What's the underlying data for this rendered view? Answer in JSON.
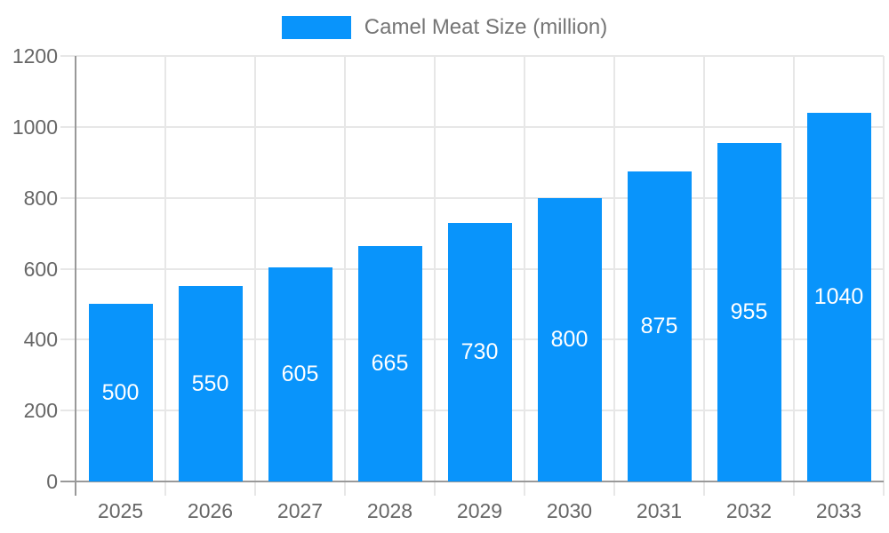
{
  "chart": {
    "legend": {
      "label": "Camel Meat Size (million)"
    },
    "colors": {
      "bar": "#0994FB",
      "grid": "#E7E7E7",
      "axis": "#999999",
      "tick_text": "#666666",
      "legend_text": "#757575",
      "data_label_text": "#FFFFFF",
      "background": "#FFFFFF"
    }
  },
  "chart_data": {
    "type": "bar",
    "title": "Camel Meat Size (million)",
    "series_name": "Camel Meat Size (million)",
    "categories": [
      "2025",
      "2026",
      "2027",
      "2028",
      "2029",
      "2030",
      "2031",
      "2032",
      "2033"
    ],
    "values": [
      500,
      550,
      605,
      665,
      730,
      800,
      875,
      955,
      1040
    ],
    "data_label_texts": [
      "500",
      "550",
      "605",
      "665",
      "730",
      "800",
      "875",
      "955",
      "1040"
    ],
    "xlabel": "",
    "ylabel": "",
    "ylim": [
      0,
      1200
    ],
    "ytick_step": 200,
    "yticks": [
      0,
      200,
      400,
      600,
      800,
      1000,
      1200
    ],
    "grid": "both",
    "legend_position": "top-center",
    "data_labels_position": "inside-center"
  }
}
